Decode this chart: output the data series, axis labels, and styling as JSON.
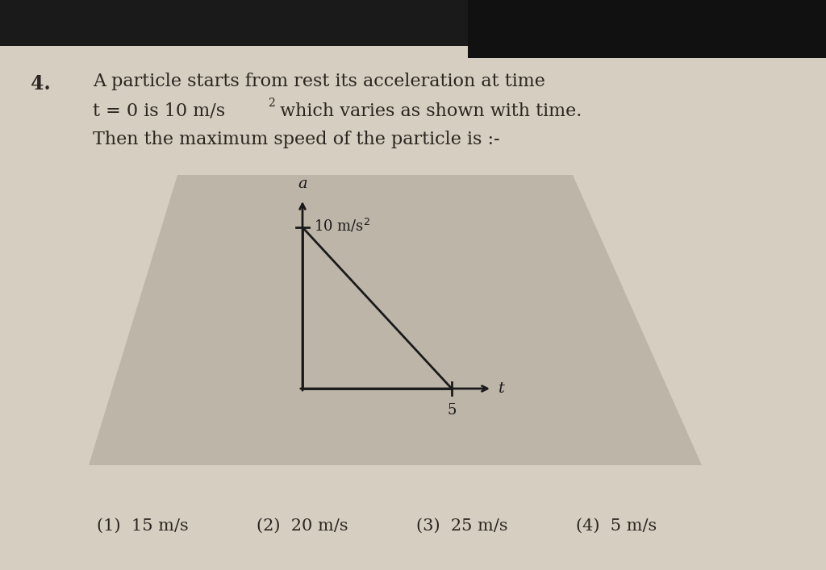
{
  "bg_color": "#c8bfb0",
  "paper_color": "#d6cec0",
  "dark_bar_color": "#1a1a1a",
  "text_color": "#2a2520",
  "question_number": "4.",
  "question_text_line1": "A particle starts from rest its acceleration at time",
  "question_text_line2": "t = 0 is 10 m/s",
  "question_text_line2b": "2",
  "question_text_line2c": " which varies as shown with time.",
  "question_text_line3": "Then the maximum speed of the particle is :-",
  "axis_label_x": "t",
  "axis_label_y": "a",
  "tick_label_x": "5",
  "options_1": "(1)  15 m/s",
  "options_2": "(2)  20 m/s",
  "options_3": "(3)  25 m/s",
  "options_4": "(4)  5 m/s",
  "shadow_color": "#bdb5a8",
  "line_color": "#1a1a1a",
  "font_size_question": 16,
  "font_size_options": 15,
  "font_size_axis": 14,
  "font_size_tick": 13,
  "font_size_num": 17
}
